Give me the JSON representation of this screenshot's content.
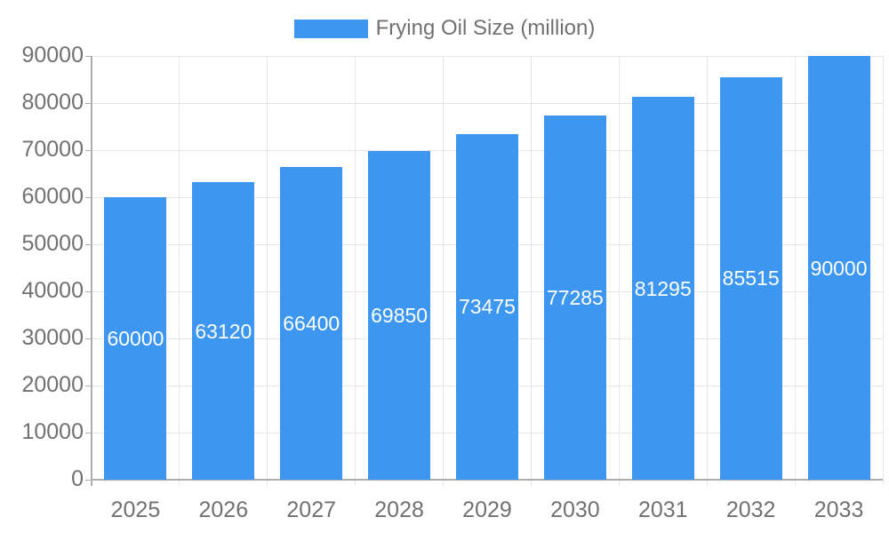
{
  "legend": {
    "label": "Frying Oil Size (million)"
  },
  "colors": {
    "bar": "#3D96F0",
    "grid": "#E6E6E6",
    "axis": "#ADADAD",
    "tick_text": "#717171",
    "legend_text": "#717171",
    "bar_label_text": "#FFFFFF"
  },
  "chart_data": {
    "type": "bar",
    "title": "Frying Oil Size (million)",
    "series": [
      {
        "name": "Frying Oil Size (million)",
        "values": [
          60000,
          63120,
          66400,
          69850,
          73475,
          77285,
          81295,
          85515,
          90000
        ]
      }
    ],
    "categories": [
      "2025",
      "2026",
      "2027",
      "2028",
      "2029",
      "2030",
      "2031",
      "2032",
      "2033"
    ],
    "data_labels": [
      "60000",
      "63120",
      "66400",
      "69850",
      "73475",
      "77285",
      "81295",
      "85515",
      "90000"
    ],
    "ytick_labels": [
      "0",
      "10000",
      "20000",
      "30000",
      "40000",
      "50000",
      "60000",
      "70000",
      "80000",
      "90000"
    ],
    "xlabel": "",
    "ylabel": "",
    "ylim": [
      0,
      90000
    ],
    "ytick_step": 10000,
    "grid": true,
    "legend_position": "top"
  }
}
